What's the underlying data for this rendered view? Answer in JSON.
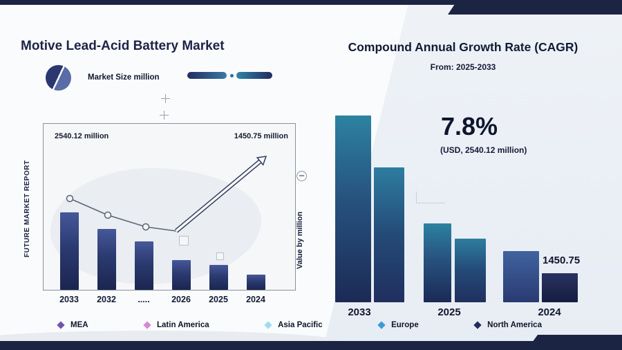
{
  "chart_data": [
    {
      "id": "market-size-trend",
      "type": "bar",
      "title": "Motive Lead-Acid Battery Market",
      "legend_label": "Market Size million",
      "side_label": "FUTURE MARKET REPORT",
      "annotations": [
        "2540.12 million",
        "1450.75 million"
      ],
      "categories": [
        "2033",
        "2032",
        ".....",
        "2026",
        "2025",
        "2024"
      ],
      "values": [
        112,
        88,
        70,
        43,
        36,
        22
      ],
      "value_scale": "relative height units (no numeric axis shown)",
      "grid": false,
      "trend": {
        "markers": [
          [
            38,
            108
          ],
          [
            93,
            132
          ],
          [
            148,
            149
          ]
        ],
        "line_end": [
          192,
          155
        ],
        "arrow_end": [
          322,
          47
        ]
      }
    },
    {
      "id": "cagr-chart",
      "type": "bar",
      "title": "Compound Annual Growth Rate (CAGR)",
      "subtitle": "From: 2025-2033",
      "cagr": "7.8%",
      "cagr_note": "(USD, 2540.12 million)",
      "ylabel": "Value by million",
      "categories": [
        "2033",
        "2025",
        "2024"
      ],
      "series": [
        {
          "name": "series-1",
          "values": [
            270,
            114,
            74
          ]
        },
        {
          "name": "series-2",
          "values": [
            195,
            92,
            42
          ]
        }
      ],
      "value_scale": "relative height units (no numeric axis shown)",
      "grid": false,
      "value_labels": [
        {
          "category": "2024",
          "text": "1450.75"
        }
      ]
    }
  ],
  "bottom_legend": {
    "items": [
      {
        "slug": "mea",
        "label": "MEA",
        "color": "#6f55ae"
      },
      {
        "slug": "latin-america",
        "label": "Latin America",
        "color": "#d788cf"
      },
      {
        "slug": "asia-pacific",
        "label": "Asia Pacific",
        "color": "#9edcee"
      },
      {
        "slug": "europe",
        "label": "Europe",
        "color": "#3b9ad8"
      },
      {
        "slug": "north-america",
        "label": "North America",
        "color": "#232c5e"
      }
    ]
  },
  "colors": {
    "frame_navy": "#1c2443",
    "bar_teal_top": "#2c82a2",
    "bar_navy_bottom": "#1b2a55",
    "accent_blue": "#3a79a4",
    "background": "#fafbfd"
  }
}
